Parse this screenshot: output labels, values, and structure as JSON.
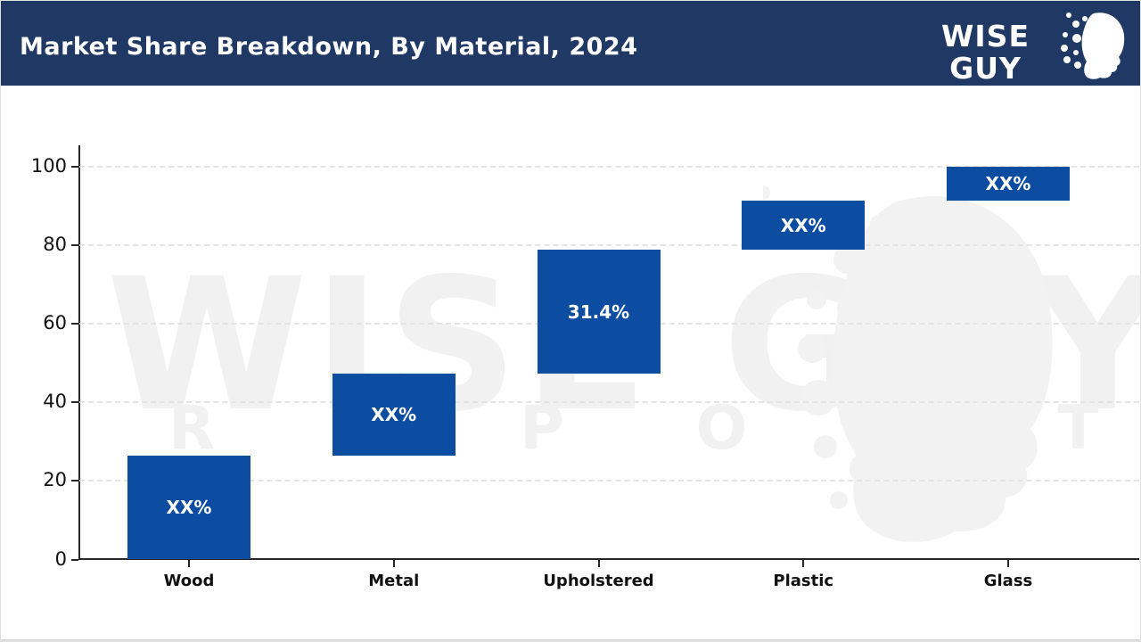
{
  "header": {
    "title": "Market Share Breakdown, By Material, 2024",
    "bg_color": "#203864",
    "logo": {
      "line1": "WISE GUY",
      "line2": "R E P O R T S"
    }
  },
  "watermark": {
    "line1": "WISE GUY",
    "line2": "R E P O R T S"
  },
  "chart_data": {
    "type": "bar",
    "subtype": "waterfall-floating-bars",
    "title": "Market Share Breakdown, By Material, 2024",
    "categories": [
      "Wood",
      "Metal",
      "Upholstered",
      "Plastic",
      "Glass"
    ],
    "segments": [
      {
        "label": "Wood",
        "start": 0,
        "end": 26.5,
        "value_label": "XX%"
      },
      {
        "label": "Metal",
        "start": 26.5,
        "end": 47.3,
        "value_label": "XX%"
      },
      {
        "label": "Upholstered",
        "start": 47.3,
        "end": 78.7,
        "value_label": "31.4%"
      },
      {
        "label": "Plastic",
        "start": 78.7,
        "end": 91.3,
        "value_label": "XX%"
      },
      {
        "label": "Glass",
        "start": 91.3,
        "end": 100,
        "value_label": "XX%"
      }
    ],
    "y_ticks": [
      0,
      20,
      40,
      60,
      80,
      100
    ],
    "ylim": [
      0,
      105
    ],
    "xlabel": "",
    "ylabel": "",
    "grid": "horizontal-dashed",
    "legend": "none",
    "bar_color": "#0C4DA2",
    "axis_color": "#262626",
    "gridline_color": "#e3e3e3"
  }
}
